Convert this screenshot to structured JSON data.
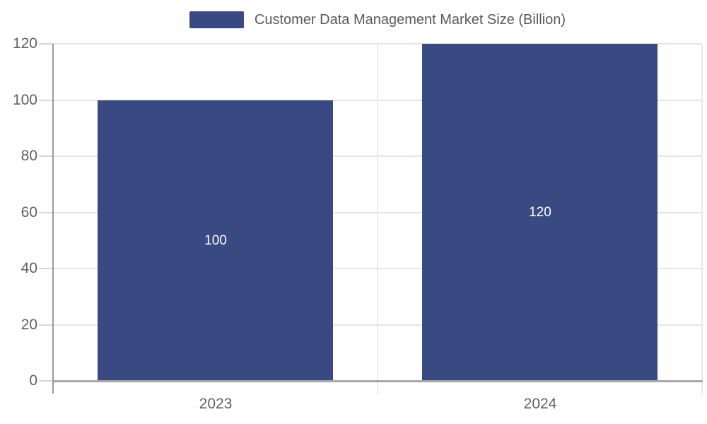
{
  "chart_data": {
    "type": "bar",
    "title": "Customer Data Management Market Size (Billion)",
    "legend": [
      "Customer Data Management Market Size (Billion)"
    ],
    "legend_position": "top-center",
    "categories": [
      "2023",
      "2024"
    ],
    "values": [
      100,
      120
    ],
    "bar_labels": [
      "100",
      "120"
    ],
    "xlabel": "",
    "ylabel": "",
    "ylim": [
      0,
      120
    ],
    "yticks": [
      0,
      20,
      40,
      60,
      80,
      100,
      120
    ],
    "grid": true
  },
  "colors": {
    "bar_fill": "#394a83",
    "bar_value_label": "#ffffff",
    "legend_text": "#595959",
    "tick_label_text": "#616161",
    "gridline": "#e5e5e5",
    "boundary_line": "#e9e9e9",
    "y_axis_line": "#9a9a9a",
    "baseline": "#a8a8a8",
    "ytick_dash": "#d6d6d6",
    "background": "#ffffff"
  }
}
